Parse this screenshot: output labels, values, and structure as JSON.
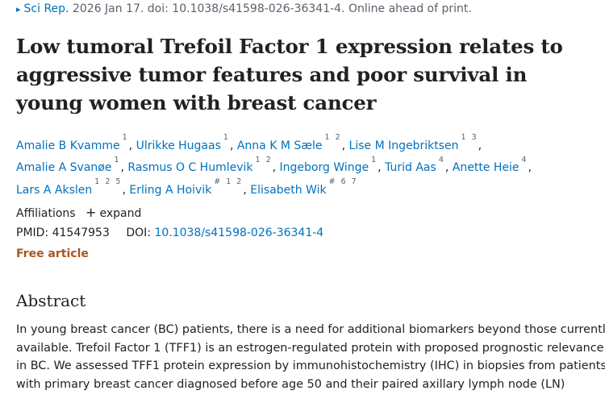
{
  "citation": {
    "journal": "Sci Rep.",
    "rest": " 2026 Jan 17. doi: 10.1038/s41598-026-36341-4. Online ahead of print."
  },
  "title": "Low tumoral Trefoil Factor 1 expression relates to aggressive tumor features and poor survival in young women with breast cancer",
  "authors": [
    {
      "name": "Amalie B Kvamme",
      "aff": "1"
    },
    {
      "name": "Ulrikke Hugaas",
      "aff": "1"
    },
    {
      "name": "Anna K M Sæle",
      "aff": "1 2"
    },
    {
      "name": "Lise M Ingebriktsen",
      "aff": "1 3"
    },
    {
      "name": "Amalie A Svanøe",
      "aff": "1"
    },
    {
      "name": "Rasmus O C Humlevik",
      "aff": "1 2"
    },
    {
      "name": "Ingeborg Winge",
      "aff": "1"
    },
    {
      "name": "Turid Aas",
      "aff": "4"
    },
    {
      "name": "Anette Heie",
      "aff": "4"
    },
    {
      "name": "Lars A Akslen",
      "aff": "1 2 5"
    },
    {
      "name": "Erling A Hoivik",
      "aff": "# 1 2"
    },
    {
      "name": "Elisabeth Wik",
      "aff": "# 6 7"
    }
  ],
  "affiliations": {
    "label": "Affiliations",
    "expand": "expand",
    "expand_icon": "plus-icon"
  },
  "ids": {
    "pmid_label": "PMID:",
    "pmid": "41547953",
    "doi_label": "DOI:",
    "doi": "10.1038/s41598-026-36341-4"
  },
  "free_article": "Free article",
  "abstract": {
    "heading": "Abstract",
    "lines": [
      "In young breast cancer (BC) patients, there is a need for additional biomarkers beyond those currently",
      "available. Trefoil Factor 1 (TFF1) is an estrogen-regulated protein with proposed prognostic relevance",
      "in BC. We assessed TFF1 protein expression by immunohistochemistry (IHC) in biopsies from patients",
      "with primary breast cancer diagnosed before age 50 and their paired axillary lymph node (LN)"
    ]
  },
  "colors": {
    "link": "#0071bc",
    "free_article": "#a8561e",
    "text": "#212121",
    "muted": "#5b616b"
  }
}
